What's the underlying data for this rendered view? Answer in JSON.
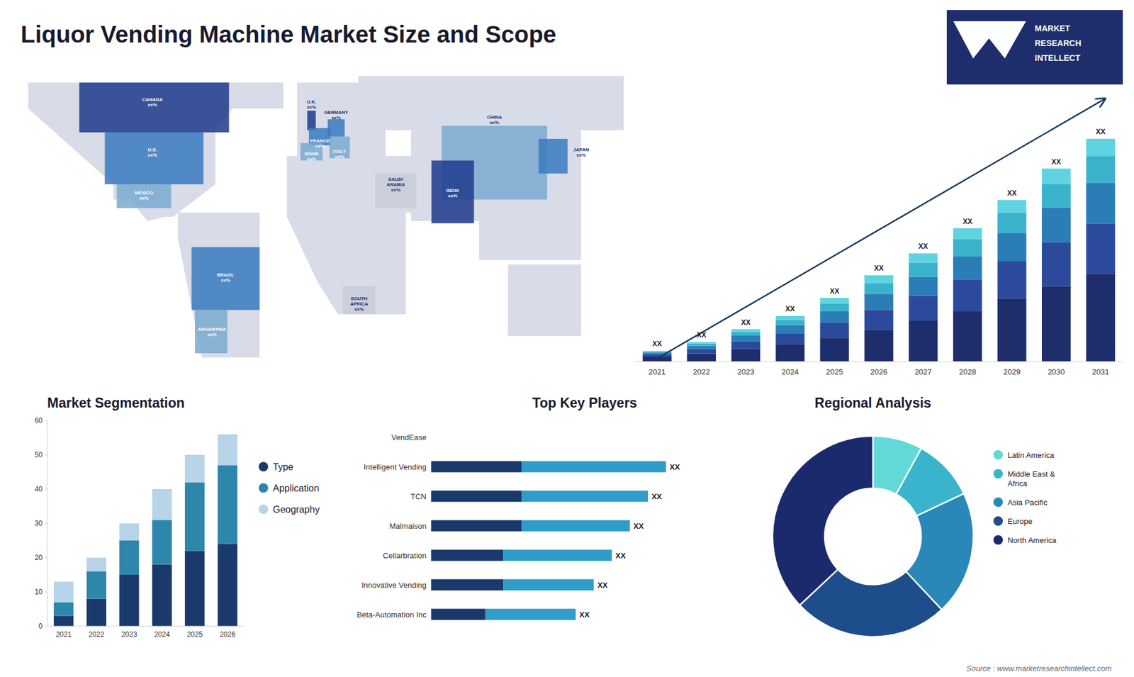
{
  "title": "Liquor Vending Machine Market Size and Scope",
  "logo": [
    "MARKET",
    "RESEARCH",
    "INTELLECT"
  ],
  "source": "Source : www.marketresearchintellect.com",
  "chart_data": [
    {
      "type": "map",
      "xlim": [
        -180,
        180
      ],
      "ylim": [
        -65,
        82
      ],
      "tick_labels": false,
      "land_color": "#d8dce8",
      "land": [
        [
          [
            -170,
            72
          ],
          [
            -50,
            72
          ],
          [
            -50,
            60
          ],
          [
            -60,
            50
          ],
          [
            -60,
            25
          ],
          [
            -85,
            10
          ],
          [
            -90,
            10
          ],
          [
            -100,
            8
          ],
          [
            -110,
            18
          ],
          [
            -120,
            18
          ],
          [
            -120,
            25
          ],
          [
            -170,
            60
          ]
        ],
        [
          [
            -70,
            60
          ],
          [
            -20,
            60
          ],
          [
            -20,
            72
          ],
          [
            -70,
            72
          ]
        ],
        [
          [
            -82,
            12
          ],
          [
            -34,
            12
          ],
          [
            -34,
            -55
          ],
          [
            -68,
            -55
          ],
          [
            -82,
            0
          ]
        ],
        [
          [
            -12,
            36
          ],
          [
            40,
            36
          ],
          [
            40,
            72
          ],
          [
            -12,
            72
          ]
        ],
        [
          [
            -18,
            38
          ],
          [
            52,
            38
          ],
          [
            52,
            -35
          ],
          [
            12,
            -35
          ],
          [
            0,
            -20
          ],
          [
            -18,
            10
          ]
        ],
        [
          [
            24,
            12
          ],
          [
            62,
            12
          ],
          [
            62,
            38
          ],
          [
            24,
            38
          ]
        ],
        [
          [
            24,
            50
          ],
          [
            180,
            50
          ],
          [
            180,
            75
          ],
          [
            24,
            75
          ]
        ],
        [
          [
            55,
            8
          ],
          [
            155,
            8
          ],
          [
            155,
            50
          ],
          [
            55,
            50
          ]
        ],
        [
          [
            95,
            -10
          ],
          [
            155,
            -10
          ],
          [
            155,
            10
          ],
          [
            95,
            10
          ]
        ],
        [
          [
            112,
            -45
          ],
          [
            155,
            -45
          ],
          [
            155,
            -12
          ],
          [
            112,
            -12
          ]
        ],
        [
          [
            130,
            30
          ],
          [
            147,
            30
          ],
          [
            147,
            46
          ],
          [
            130,
            46
          ]
        ]
      ],
      "regions": [
        {
          "name": "U.S.\nxx%",
          "color": "#3a7abf",
          "label_color": "#ffffff",
          "label_at": [
            -97,
            40
          ],
          "points": [
            [
              -125,
              49
            ],
            [
              -67,
              49
            ],
            [
              -67,
              25
            ],
            [
              -125,
              25
            ]
          ]
        },
        {
          "name": "CANADA\nxx%",
          "color": "#1e3a8c",
          "label_color": "#ffffff",
          "label_at": [
            -97,
            63
          ],
          "points": [
            [
              -140,
              72
            ],
            [
              -52,
              72
            ],
            [
              -52,
              49
            ],
            [
              -140,
              49
            ]
          ]
        },
        {
          "name": "MEXICO\nxx%",
          "color": "#7aaad0",
          "label_color": "#ffffff",
          "label_at": [
            -102,
            20
          ],
          "points": [
            [
              -118,
              25
            ],
            [
              -86,
              25
            ],
            [
              -86,
              14
            ],
            [
              -118,
              14
            ]
          ]
        },
        {
          "name": "BRAZIL\nxx%",
          "color": "#3a7abf",
          "label_color": "#ffffff",
          "label_at": [
            -54,
            -18
          ],
          "points": [
            [
              -74,
              -4
            ],
            [
              -34,
              -4
            ],
            [
              -34,
              -33
            ],
            [
              -74,
              -33
            ]
          ]
        },
        {
          "name": "ARGENTINA\nxx%",
          "color": "#7aaad0",
          "label_color": "#ffffff",
          "label_at": [
            -62,
            -43
          ],
          "points": [
            [
              -72,
              -33
            ],
            [
              -53,
              -33
            ],
            [
              -53,
              -53
            ],
            [
              -72,
              -53
            ]
          ]
        },
        {
          "name": "SAUDI\nARABIA\nxx%",
          "color": "#c8ccd8",
          "label_color": "#1a2a6c",
          "label_at": [
            46,
            25
          ],
          "points": [
            [
              34,
              14
            ],
            [
              58,
              14
            ],
            [
              58,
              30
            ],
            [
              34,
              30
            ]
          ]
        },
        {
          "name": "SOUTH\nAFRICA\nxx%",
          "color": "#c8ccd8",
          "label_color": "#1a2a6c",
          "label_at": [
            24.5,
            -30
          ],
          "points": [
            [
              15,
              -35
            ],
            [
              34,
              -35
            ],
            [
              34,
              -22
            ],
            [
              15,
              -22
            ]
          ]
        },
        {
          "name": "CHINA\nxx%",
          "color": "#7aaad0",
          "label_color": "#1a2a6c",
          "label_at": [
            104,
            55
          ],
          "points": [
            [
              73,
              18
            ],
            [
              135,
              18
            ],
            [
              135,
              52
            ],
            [
              73,
              52
            ]
          ]
        },
        {
          "name": "U.K.\nxx%",
          "color": "#1e3a8c",
          "label_color": "#1a2a6c",
          "label_at": [
            -3.5,
            62
          ],
          "points": [
            [
              -6,
              50
            ],
            [
              -1,
              50
            ],
            [
              -1,
              59
            ],
            [
              -6,
              59
            ]
          ]
        },
        {
          "name": "FRANCE\nxx%",
          "color": "#3a7abf",
          "label_color": "#ffffff",
          "label_at": [
            1.5,
            44
          ],
          "points": [
            [
              -5,
              43
            ],
            [
              8,
              43
            ],
            [
              8,
              51
            ],
            [
              -5,
              51
            ]
          ]
        },
        {
          "name": "SPAIN\nxx%",
          "color": "#7aaad0",
          "label_color": "#ffffff",
          "label_at": [
            -3.5,
            38
          ],
          "points": [
            [
              -10,
              36
            ],
            [
              3,
              36
            ],
            [
              3,
              44
            ],
            [
              -10,
              44
            ]
          ]
        },
        {
          "name": "GERMANY\nxx%",
          "color": "#3a7abf",
          "label_color": "#1a2a6c",
          "label_at": [
            11,
            57
          ],
          "points": [
            [
              6,
              47
            ],
            [
              16,
              47
            ],
            [
              16,
              55
            ],
            [
              6,
              55
            ]
          ]
        },
        {
          "name": "ITALY\nxx%",
          "color": "#7aaad0",
          "label_color": "#ffffff",
          "label_at": [
            13,
            39
          ],
          "points": [
            [
              7,
              37
            ],
            [
              19,
              37
            ],
            [
              19,
              47
            ],
            [
              7,
              47
            ]
          ]
        },
        {
          "name": "INDIA\nxx%",
          "color": "#1e3a8c",
          "label_color": "#ffffff",
          "label_at": [
            79.5,
            21
          ],
          "points": [
            [
              67,
              7
            ],
            [
              92,
              7
            ],
            [
              92,
              36
            ],
            [
              67,
              36
            ]
          ]
        },
        {
          "name": "JAPAN\nxx%",
          "color": "#3a7abf",
          "label_color": "#1a2a6c",
          "label_at": [
            155,
            40
          ],
          "points": [
            [
              130,
              30
            ],
            [
              147,
              30
            ],
            [
              147,
              46
            ],
            [
              130,
              46
            ]
          ]
        }
      ]
    },
    {
      "type": "bar",
      "stacked": true,
      "categories": [
        "2021",
        "2022",
        "2023",
        "2024",
        "2025",
        "2026",
        "2027",
        "2028",
        "2029",
        "2030",
        "2031"
      ],
      "series": [
        {
          "color": "#1e2d6b",
          "values": [
            1.5,
            2.5,
            4,
            5.5,
            7.5,
            10,
            13,
            16,
            20,
            24,
            28
          ]
        },
        {
          "color": "#2c4a9c",
          "values": [
            0.8,
            1.5,
            2.5,
            3.5,
            5,
            6.5,
            8,
            10,
            12,
            14,
            16
          ]
        },
        {
          "color": "#2a7db5",
          "values": [
            0.5,
            1,
            1.8,
            2.5,
            3.5,
            5,
            6,
            7.5,
            9,
            11,
            13
          ]
        },
        {
          "color": "#3ab2cc",
          "values": [
            0.3,
            0.7,
            1.2,
            1.8,
            2.5,
            3.5,
            4.5,
            5.5,
            6.5,
            7.5,
            8.5
          ]
        },
        {
          "color": "#5fd4e0",
          "values": [
            0.3,
            0.5,
            0.8,
            1.2,
            1.8,
            2.5,
            3,
            3.5,
            4,
            5,
            5.5
          ]
        }
      ],
      "ylim": [
        0,
        95.85
      ],
      "tick_labels": "x",
      "annotations": [
        "XX",
        "XX",
        "XX",
        "XX",
        "XX",
        "XX",
        "XX",
        "XX",
        "XX",
        "XX",
        "XX"
      ],
      "color": "#1a3a5c"
    },
    {
      "type": "bar",
      "stacked": true,
      "title": "Market Segmentation",
      "categories": [
        "2021",
        "2022",
        "2023",
        "2024",
        "2025",
        "2026"
      ],
      "series": [
        {
          "name": "Type",
          "color": "#1a3a6c",
          "values": [
            3,
            8,
            15,
            18,
            22,
            24
          ]
        },
        {
          "name": "Application",
          "color": "#2e86ab",
          "values": [
            4,
            8,
            10,
            13,
            20,
            23
          ]
        },
        {
          "name": "Geography",
          "color": "#b8d4e8",
          "values": [
            6,
            4,
            5,
            9,
            8,
            9
          ]
        }
      ],
      "ylim": [
        0,
        60
      ],
      "yticks": [
        0,
        10,
        20,
        30,
        40,
        50,
        60
      ],
      "legend": "right"
    },
    {
      "type": "bar",
      "orientation": "horizontal",
      "stacked": true,
      "title": "Top Key Players",
      "categories": [
        "VendEase",
        "Intelligent Vending",
        "TCN",
        "Malmaison",
        "Cellarbration",
        "Innovative Vending",
        "Beta-Automation Inc"
      ],
      "series": [
        {
          "color": "#1a3a6c",
          "values": [
            0,
            5,
            5,
            5,
            4,
            4,
            3
          ]
        },
        {
          "color": "#2e9dc8",
          "values": [
            0,
            8,
            7,
            6,
            6,
            5,
            5
          ]
        }
      ],
      "xlim": [
        0,
        17
      ],
      "tick_labels": "y",
      "annotations": [
        null,
        "XX",
        "XX",
        "XX",
        "XX",
        "XX",
        "XX"
      ]
    },
    {
      "type": "pie",
      "title": "Regional Analysis",
      "categories": [
        "Latin America",
        "Middle East &\nAfrica",
        "Asia Pacific",
        "Europe",
        "North America"
      ],
      "values": [
        8,
        10,
        20,
        25,
        37
      ],
      "colors": [
        "#62d8d8",
        "#3ab4cc",
        "#2a88b8",
        "#1e4d8c",
        "#1a2a6c"
      ],
      "legend": "right"
    }
  ]
}
